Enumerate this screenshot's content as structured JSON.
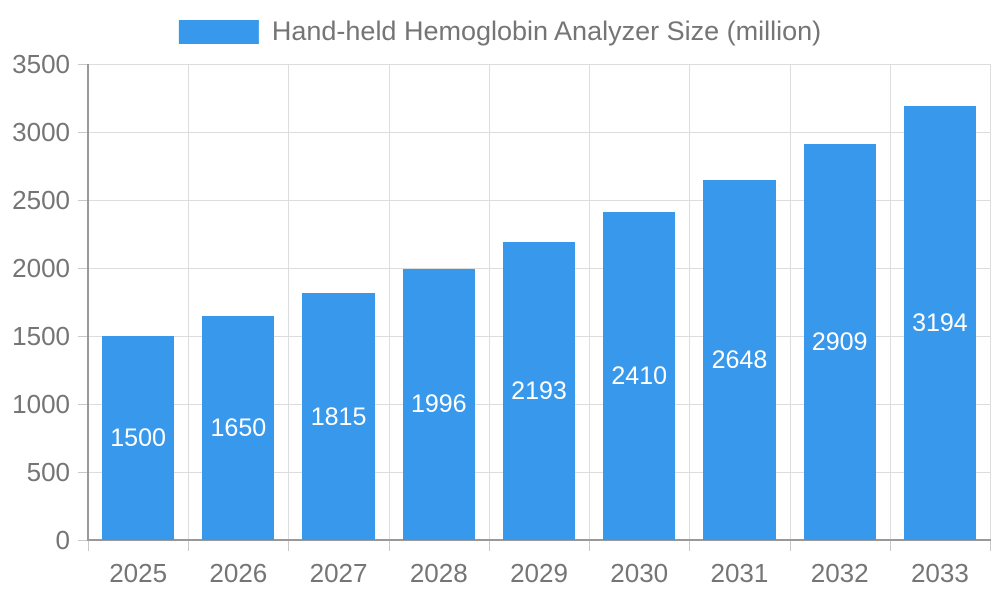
{
  "chart_data": {
    "type": "bar",
    "title": "Hand-held Hemoglobin Analyzer Size (million)",
    "legend": [
      "Hand-held Hemoglobin Analyzer Size (million)"
    ],
    "legend_position": "top-center",
    "categories": [
      "2025",
      "2026",
      "2027",
      "2028",
      "2029",
      "2030",
      "2031",
      "2032",
      "2033"
    ],
    "series": [
      {
        "name": "Hand-held Hemoglobin Analyzer Size (million)",
        "values": [
          1500,
          1650,
          1815,
          1996,
          2193,
          2410,
          2648,
          2909,
          3194
        ]
      }
    ],
    "value_labels_shown": true,
    "xlabel": "",
    "ylabel": "",
    "ylim": [
      0,
      3500
    ],
    "yticks": [
      0,
      500,
      1000,
      1500,
      2000,
      2500,
      3000,
      3500
    ],
    "grid": true,
    "colors": {
      "bar": "#3899EC",
      "value_label": "#FFFFFF",
      "axis_line": "#999999",
      "gridline": "#DDDDDD",
      "tick": "#C8C8C8",
      "tick_label": "#757575",
      "legend_text": "#757575",
      "background": "#FFFFFF"
    }
  }
}
